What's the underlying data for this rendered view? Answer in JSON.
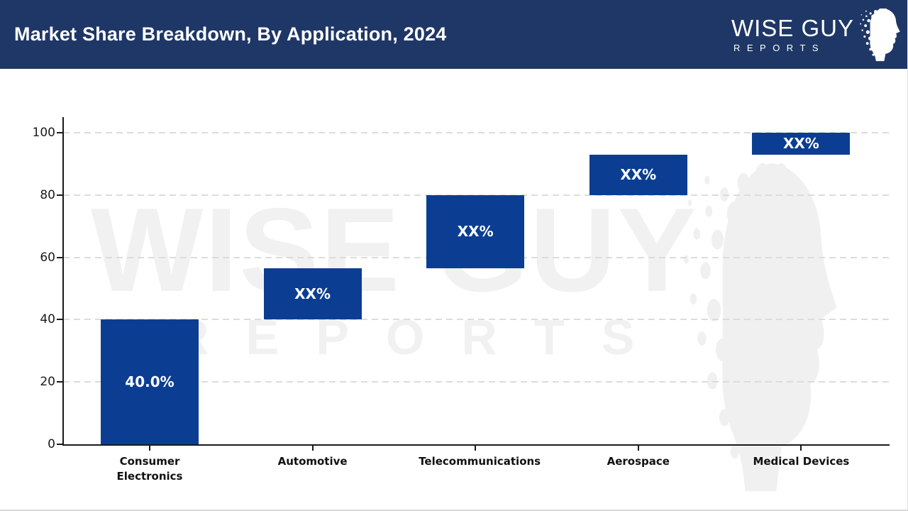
{
  "header": {
    "title": "Market Share Breakdown, By Application, 2024",
    "bg_color": "#1f3766",
    "logo": {
      "name": "WISE GUY",
      "sub": "REPORTS"
    }
  },
  "watermark": {
    "name": "WISE GUY",
    "sub": "REPORTS"
  },
  "chart_data": {
    "type": "bar",
    "variant": "waterfall",
    "title": "Market Share Breakdown, By Application, 2024",
    "categories": [
      "Consumer Electronics",
      "Automotive",
      "Telecommunications",
      "Aerospace",
      "Medical Devices"
    ],
    "series": [
      {
        "name": "Market share (%)",
        "segments": [
          {
            "category": "Consumer Electronics",
            "start": 0,
            "end": 40,
            "label": "40.0%"
          },
          {
            "category": "Automotive",
            "start": 40,
            "end": 56.5,
            "label": "XX%"
          },
          {
            "category": "Telecommunications",
            "start": 56.5,
            "end": 80,
            "label": "XX%"
          },
          {
            "category": "Aerospace",
            "start": 80,
            "end": 93,
            "label": "XX%"
          },
          {
            "category": "Medical Devices",
            "start": 93,
            "end": 100,
            "label": "XX%"
          }
        ]
      }
    ],
    "xlabel": "",
    "ylabel": "",
    "yticks": [
      0,
      20,
      40,
      60,
      80,
      100
    ],
    "ylim": [
      0,
      105
    ],
    "grid": "horizontal-dashed",
    "legend": "none",
    "colors": {
      "bar": "#0b3e92",
      "bar_label": "#ffffff",
      "grid": "#dcdcdc",
      "axis": "#1a1a1a",
      "tick_label": "#1a1a1a",
      "watermark": "#f1f1f2",
      "header_bg": "#1f3766",
      "header_text": "#ffffff"
    }
  }
}
